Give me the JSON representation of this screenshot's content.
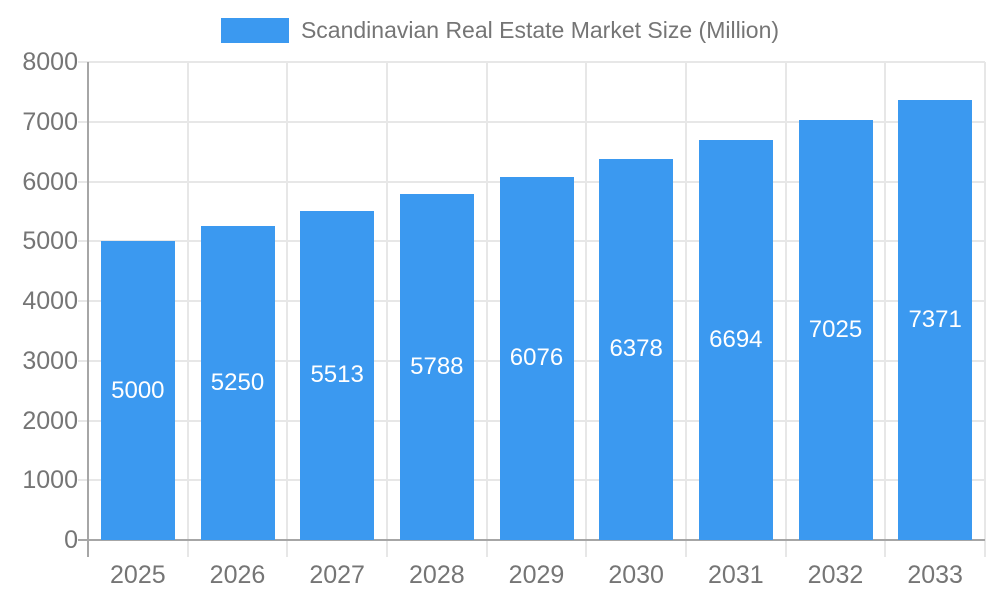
{
  "chart_data": {
    "type": "bar",
    "title": "Scandinavian Real Estate Market Size (Million)",
    "categories": [
      "2025",
      "2026",
      "2027",
      "2028",
      "2029",
      "2030",
      "2031",
      "2032",
      "2033"
    ],
    "values": [
      5000,
      5250,
      5513,
      5788,
      6076,
      6378,
      6694,
      7025,
      7371
    ],
    "bar_labels": [
      "5000",
      "5250",
      "5513",
      "5788",
      "6076",
      "6378",
      "6694",
      "7025",
      "7371"
    ],
    "ytick_labels": [
      "0",
      "1000",
      "2000",
      "3000",
      "4000",
      "5000",
      "6000",
      "7000",
      "8000"
    ],
    "yticks": [
      0,
      1000,
      2000,
      3000,
      4000,
      5000,
      6000,
      7000,
      8000
    ],
    "ylim": [
      0,
      8000
    ],
    "xlabel": "",
    "ylabel": "",
    "grid": true,
    "legend_position": "top"
  },
  "colors": {
    "bar": "#3B99F0",
    "grid": "#e7e7e7",
    "axis": "#a6a6a6",
    "tick_text": "#757575",
    "bar_label_text": "#ffffff",
    "background": "#ffffff"
  }
}
